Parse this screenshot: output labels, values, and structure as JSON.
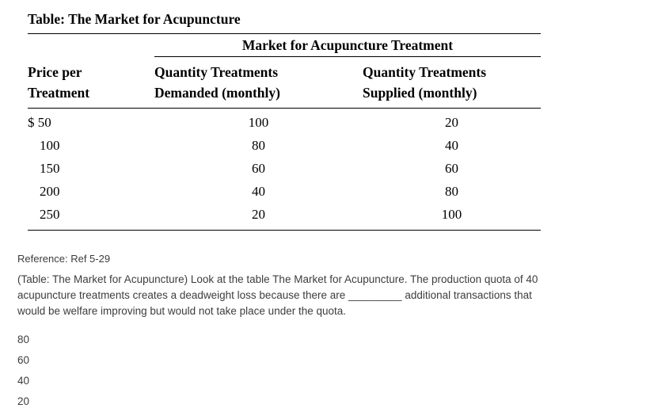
{
  "table": {
    "title": "Table: The Market for Acupuncture",
    "spanning_header": "Market for Acupuncture Treatment",
    "columns": [
      {
        "line1": "Price per",
        "line2": "Treatment"
      },
      {
        "line1": "Quantity Treatments",
        "line2": "Demanded (monthly)"
      },
      {
        "line1": "Quantity Treatments",
        "line2": "Supplied (monthly)"
      }
    ],
    "rows": [
      {
        "price": "$ 50",
        "demanded": "100",
        "supplied": "20"
      },
      {
        "price": "100",
        "demanded": "80",
        "supplied": "40"
      },
      {
        "price": "150",
        "demanded": "60",
        "supplied": "60"
      },
      {
        "price": "200",
        "demanded": "40",
        "supplied": "80"
      },
      {
        "price": "250",
        "demanded": "20",
        "supplied": "100"
      }
    ]
  },
  "reference": "Reference: Ref 5-29",
  "question": "(Table: The Market for Acupuncture) Look at the table The Market for Acupuncture. The production quota of 40 acupuncture treatments creates a deadweight loss because there are _________ additional transactions that would be welfare improving but would not take place under the quota.",
  "options": [
    "80",
    "60",
    "40",
    "20"
  ]
}
